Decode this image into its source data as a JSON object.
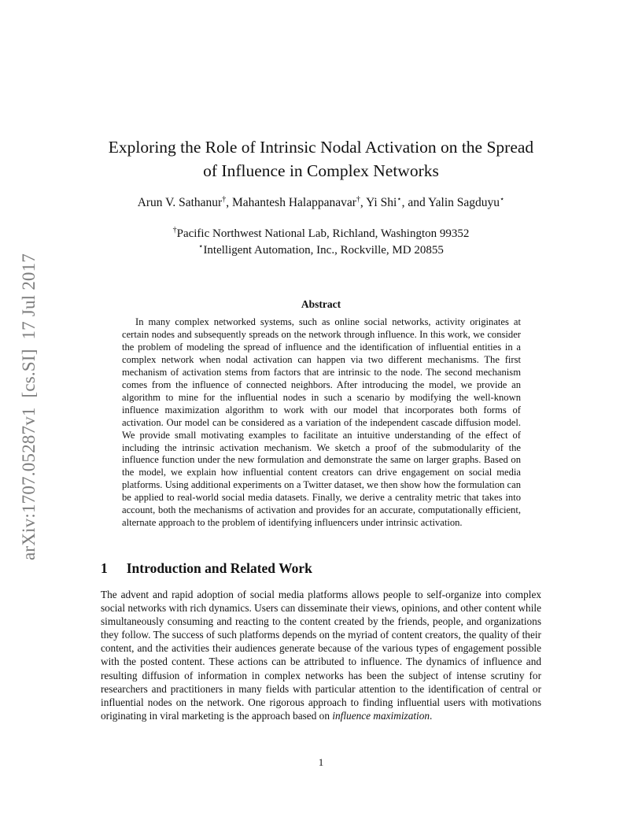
{
  "watermark": {
    "text": "arXiv:1707.05287v1  [cs.SI]  17 Jul 2017"
  },
  "title": {
    "line1": "Exploring the Role of Intrinsic Nodal Activation on the Spread",
    "line2": "of Influence in Complex Networks"
  },
  "authors": {
    "separator": ", ",
    "list": [
      {
        "name": "Arun V. Sathanur",
        "mark": "†"
      },
      {
        "name": "Mahantesh Halappanavar",
        "mark": "†"
      },
      {
        "name": "Yi Shi",
        "mark": "⋆"
      },
      {
        "name": "and Yalin Sagduyu",
        "mark": "⋆"
      }
    ]
  },
  "affiliations": [
    {
      "mark": "†",
      "text": "Pacific Northwest National Lab, Richland, Washington 99352"
    },
    {
      "mark": "⋆",
      "text": "Intelligent Automation, Inc., Rockville, MD 20855"
    }
  ],
  "abstract": {
    "heading": "Abstract",
    "text": "In many complex networked systems, such as online social networks, activity originates at certain nodes and subsequently spreads on the network through influence. In this work, we consider the problem of modeling the spread of influence and the identification of influential entities in a complex network when nodal activation can happen via two different mechanisms. The first mechanism of activation stems from factors that are intrinsic to the node. The second mechanism comes from the influence of connected neighbors. After introducing the model, we provide an algorithm to mine for the influential nodes in such a scenario by modifying the well-known influence maximization algorithm to work with our model that incorporates both forms of activation. Our model can be considered as a variation of the independent cascade diffusion model. We provide small motivating examples to facilitate an intuitive understanding of the effect of including the intrinsic activation mechanism. We sketch a proof of the submodularity of the influence function under the new formulation and demonstrate the same on larger graphs. Based on the model, we explain how influential content creators can drive engagement on social media platforms. Using additional experiments on a Twitter dataset, we then show how the formulation can be applied to real-world social media datasets. Finally, we derive a centrality metric that takes into account, both the mechanisms of activation and provides for an accurate, computationally efficient, alternate approach to the problem of identifying influencers under intrinsic activation."
  },
  "section1": {
    "number": "1",
    "heading": "Introduction and Related Work",
    "paragraph": "The advent and rapid adoption of social media platforms allows people to self-organize into complex social networks with rich dynamics. Users can disseminate their views, opinions, and other content while simultaneously consuming and reacting to the content created by the friends, people, and organizations they follow. The success of such platforms depends on the myriad of content creators, the quality of their content, and the activities their audiences generate because of the various types of engagement possible with the posted content. These actions can be attributed to influence. The dynamics of influence and resulting diffusion of information in complex networks has been the subject of intense scrutiny for researchers and practitioners in many fields with particular attention to the identification of central or influential nodes on the network. One rigorous approach to finding influential users with motivations originating in viral marketing is the approach based on ",
    "italic": "influence maximization",
    "suffix": "."
  },
  "page": {
    "number": "1"
  }
}
